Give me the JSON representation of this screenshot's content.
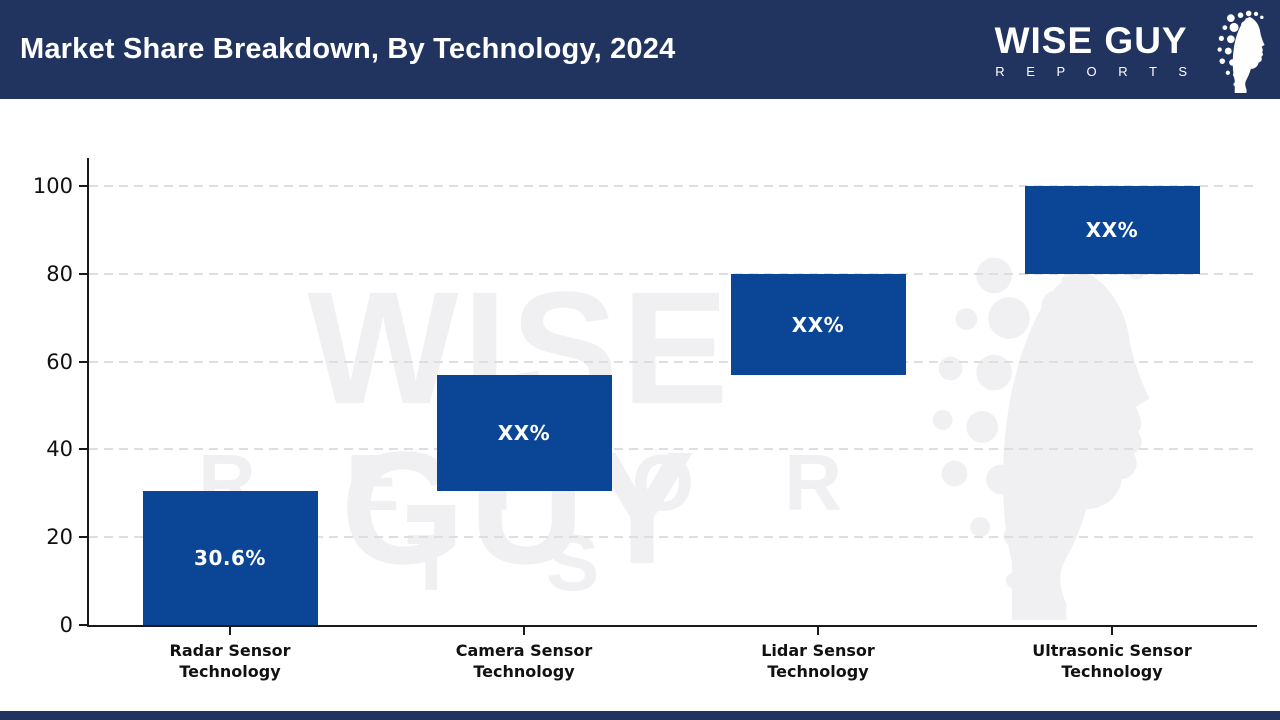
{
  "header": {
    "title": "Market Share Breakdown, By Technology, 2024",
    "logo": {
      "line1": "WISE GUY",
      "line2": "R E P O R T S"
    }
  },
  "watermark": {
    "line1": "WISE GUY",
    "line2": "R E P O R T S"
  },
  "colors": {
    "header_bg": "#21345f",
    "footer_bg": "#21345f",
    "bar": "#0b4696",
    "watermark": "#f0f0f2"
  },
  "chart_data": {
    "type": "bar",
    "variant": "floating-waterfall",
    "title": "Market Share Breakdown, By Technology, 2024",
    "categories": [
      "Radar Sensor Technology",
      "Camera Sensor Technology",
      "Lidar Sensor Technology",
      "Ultrasonic Sensor Technology"
    ],
    "bars": [
      {
        "category_line1": "Radar Sensor",
        "category_line2": "Technology",
        "start": 0,
        "end": 30.6,
        "label": "30.6%"
      },
      {
        "category_line1": "Camera Sensor",
        "category_line2": "Technology",
        "start": 30.6,
        "end": 57,
        "label": "XX%"
      },
      {
        "category_line1": "Lidar Sensor",
        "category_line2": "Technology",
        "start": 57,
        "end": 80,
        "label": "XX%"
      },
      {
        "category_line1": "Ultrasonic Sensor",
        "category_line2": "Technology",
        "start": 80,
        "end": 100,
        "label": "XX%"
      }
    ],
    "xlabel": "",
    "ylabel": "",
    "ylim": [
      0,
      100
    ],
    "yticks": [
      0,
      20,
      40,
      60,
      80,
      100
    ],
    "grid": "horizontal-dashed",
    "legend": "none"
  }
}
